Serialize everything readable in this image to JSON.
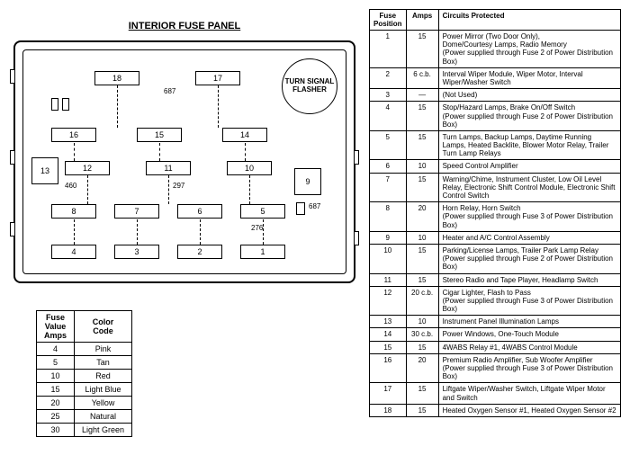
{
  "title": "INTERIOR FUSE PANEL",
  "flasher_label": "TURN SIGNAL FLASHER",
  "fuses": {
    "f1": "1",
    "f2": "2",
    "f3": "3",
    "f4": "4",
    "f5": "5",
    "f6": "6",
    "f7": "7",
    "f8": "8",
    "f9": "9",
    "f10": "10",
    "f11": "11",
    "f12": "12",
    "f13": "13",
    "f14": "14",
    "f15": "15",
    "f16": "16",
    "f17": "17",
    "f18": "18"
  },
  "panel_labels": {
    "l687a": "687",
    "l687b": "687",
    "l460": "460",
    "l297": "297",
    "l276": "276"
  },
  "color_table": {
    "headers": [
      "Fuse Value Amps",
      "Color Code"
    ],
    "rows": [
      [
        "4",
        "Pink"
      ],
      [
        "5",
        "Tan"
      ],
      [
        "10",
        "Red"
      ],
      [
        "15",
        "Light Blue"
      ],
      [
        "20",
        "Yellow"
      ],
      [
        "25",
        "Natural"
      ],
      [
        "30",
        "Light Green"
      ]
    ]
  },
  "main_table": {
    "headers": [
      "Fuse Position",
      "Amps",
      "Circuits Protected"
    ],
    "rows": [
      [
        "1",
        "15",
        "Power Mirror (Two Door Only),\nDome/Courtesy Lamps, Radio Memory\n(Power supplied through Fuse 2 of Power Distribution Box)"
      ],
      [
        "2",
        "6 c.b.",
        "Interval Wiper Module, Wiper Motor, Interval Wiper/Washer Switch"
      ],
      [
        "3",
        "—",
        "(Not Used)"
      ],
      [
        "4",
        "15",
        "Stop/Hazard Lamps, Brake On/Off Switch\n(Power supplied through Fuse 2 of Power Distribution Box)"
      ],
      [
        "5",
        "15",
        "Turn Lamps, Backup Lamps, Daytime Running Lamps, Heated Backlite, Blower Motor Relay, Trailer Turn Lamp Relays"
      ],
      [
        "6",
        "10",
        "Speed Control Amplifier"
      ],
      [
        "7",
        "15",
        "Warning/Chime, Instrument Cluster, Low Oil Level Relay, Electronic Shift Control Module, Electronic Shift Control Switch"
      ],
      [
        "8",
        "20",
        "Horn Relay, Horn Switch\n(Power supplied through Fuse 3 of Power Distribution Box)"
      ],
      [
        "9",
        "10",
        "Heater and A/C Control Assembly"
      ],
      [
        "10",
        "15",
        "Parking/License Lamps, Trailer Park Lamp Relay\n(Power supplied through Fuse 2 of Power Distribution Box)"
      ],
      [
        "11",
        "15",
        "Stereo Radio and Tape Player, Headlamp Switch"
      ],
      [
        "12",
        "20 c.b.",
        "Cigar Lighter, Flash to Pass\n(Power supplied through Fuse 3 of Power Distribution Box)"
      ],
      [
        "13",
        "10",
        "Instrument Panel Illumination Lamps"
      ],
      [
        "14",
        "30 c.b.",
        "Power Windows, One-Touch Module"
      ],
      [
        "15",
        "15",
        "4WABS Relay #1, 4WABS Control Module"
      ],
      [
        "16",
        "20",
        "Premium Radio Amplifier, Sub Woofer Amplifier\n(Power supplied through Fuse 3 of Power Distribution Box)"
      ],
      [
        "17",
        "15",
        "Liftgate Wiper/Washer Switch, Liftgate Wiper Motor and Switch"
      ],
      [
        "18",
        "15",
        "Heated Oxygen Sensor #1, Heated Oxygen Sensor #2"
      ]
    ]
  }
}
